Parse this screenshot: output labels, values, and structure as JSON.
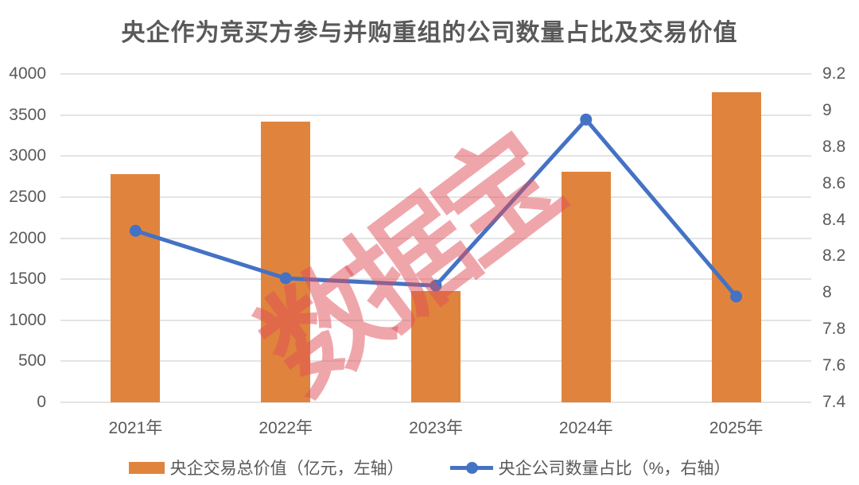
{
  "title": "央企作为竞买方参与并购重组的公司数量占比及交易价值",
  "watermark": "数据宝",
  "colors": {
    "bar": "#E0843D",
    "line": "#4472C4",
    "grid": "#e4e4e4",
    "axis_text": "#595959",
    "watermark": "rgba(223,77,88,0.5)"
  },
  "chart_data": {
    "type": "bar+line combo",
    "title": "央企作为竞买方参与并购重组的公司数量占比及交易价值",
    "categories": [
      "2021年",
      "2022年",
      "2023年",
      "2024年",
      "2025年"
    ],
    "series": [
      {
        "name": "央企交易总价值（亿元，左轴）",
        "type": "bar",
        "axis": "left",
        "color": "#E0843D",
        "values": [
          2780,
          3420,
          1360,
          2810,
          3780
        ]
      },
      {
        "name": "央企公司数量占比（%，右轴）",
        "type": "line",
        "axis": "right",
        "color": "#4472C4",
        "values": [
          8.34,
          8.08,
          8.04,
          8.95,
          7.98
        ]
      }
    ],
    "left_axis": {
      "min": 0,
      "max": 4000,
      "step": 500,
      "tick_labels": [
        "0",
        "500",
        "1000",
        "1500",
        "2000",
        "2500",
        "3000",
        "3500",
        "4000"
      ]
    },
    "right_axis": {
      "min": 7.4,
      "max": 9.2,
      "step": 0.2,
      "tick_labels": [
        "7.4",
        "7.6",
        "7.8",
        "8",
        "8.2",
        "8.4",
        "8.6",
        "8.8",
        "9",
        "9.2"
      ]
    },
    "grid": true,
    "legend_position": "bottom"
  }
}
